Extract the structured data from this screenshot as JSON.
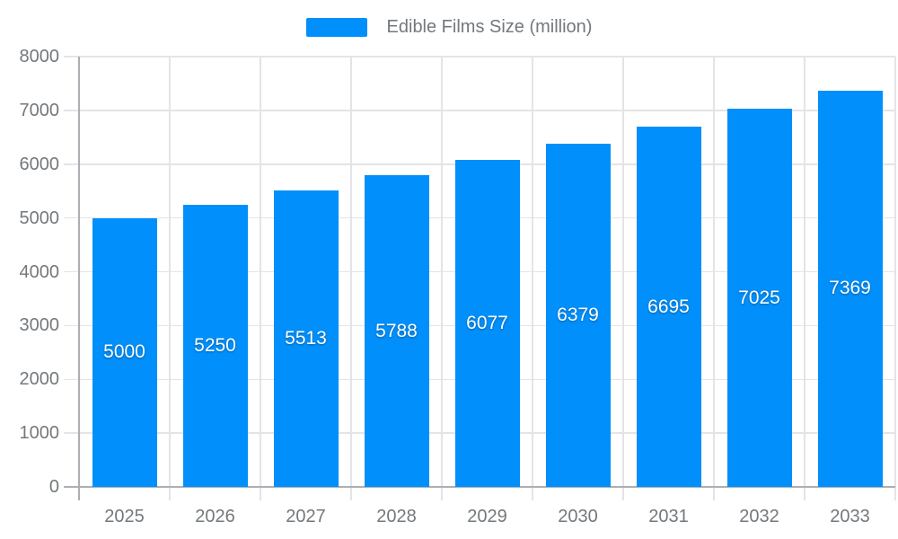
{
  "legend": {
    "label": "Edible Films Size (million)"
  },
  "colors": {
    "bar": "#008FFB",
    "grid": "#e4e4e8",
    "axis": "#abaeb3",
    "tick_label": "#73787c",
    "bar_label": "#ffffff"
  },
  "chart_data": {
    "type": "bar",
    "title": "Edible Films Size (million)",
    "categories": [
      "2025",
      "2026",
      "2027",
      "2028",
      "2029",
      "2030",
      "2031",
      "2032",
      "2033"
    ],
    "values": [
      5000,
      5250,
      5513,
      5788,
      6077,
      6379,
      6695,
      7025,
      7369
    ],
    "series": [
      {
        "name": "Edible Films Size (million)",
        "values": [
          5000,
          5250,
          5513,
          5788,
          6077,
          6379,
          6695,
          7025,
          7369
        ]
      }
    ],
    "xlabel": "",
    "ylabel": "",
    "ylim": [
      0,
      8000
    ],
    "ytick_step": 1000,
    "ytick_labels": [
      "0",
      "1000",
      "2000",
      "3000",
      "4000",
      "5000",
      "6000",
      "7000",
      "8000"
    ],
    "grid": true,
    "legend_position": "top",
    "bar_label_position": "center"
  }
}
